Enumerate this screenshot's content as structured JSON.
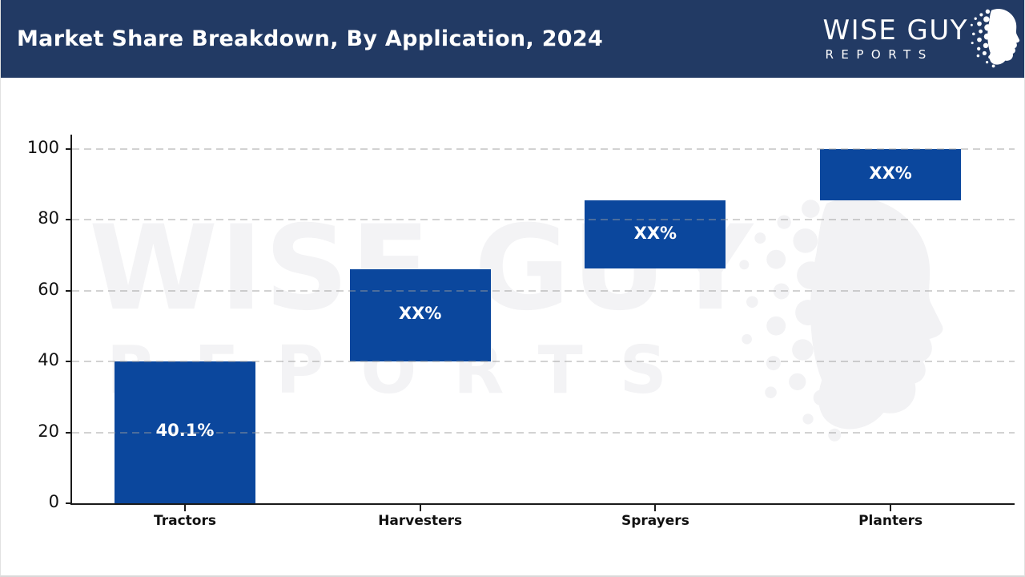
{
  "header": {
    "title": "Market Share Breakdown, By Application, 2024",
    "logo": {
      "line1": "WISE GUY",
      "line2": "REPORTS"
    }
  },
  "watermark": {
    "line1": "WISE GUY",
    "line2": "REPORTS"
  },
  "chart_data": {
    "type": "bar",
    "subtype": "waterfall",
    "title": "Market Share Breakdown, By Application, 2024",
    "categories": [
      "Tractors",
      "Harvesters",
      "Sprayers",
      "Planters"
    ],
    "series": [
      {
        "name": "Market share (%)",
        "segments": [
          {
            "category": "Tractors",
            "start": 0,
            "end": 40.1,
            "label": "40.1%"
          },
          {
            "category": "Harvesters",
            "start": 40.1,
            "end": 66.1,
            "label": "XX%"
          },
          {
            "category": "Sprayers",
            "start": 66.2,
            "end": 85.5,
            "label": "XX%"
          },
          {
            "category": "Planters",
            "start": 85.5,
            "end": 100,
            "label": "XX%"
          }
        ]
      }
    ],
    "xlabel": "",
    "ylabel": "",
    "yticks": [
      0,
      20,
      40,
      60,
      80,
      100
    ],
    "ylim": [
      0,
      104
    ],
    "grid": "horizontal-dashed",
    "legend": "none",
    "bar_color": "#0b479d",
    "bar_label_color": "#ffffff"
  },
  "colors": {
    "header_bg": "#223a64",
    "axis": "#1a1a1a",
    "grid": "#d9d9d9",
    "watermark": "#f2f2f4"
  }
}
